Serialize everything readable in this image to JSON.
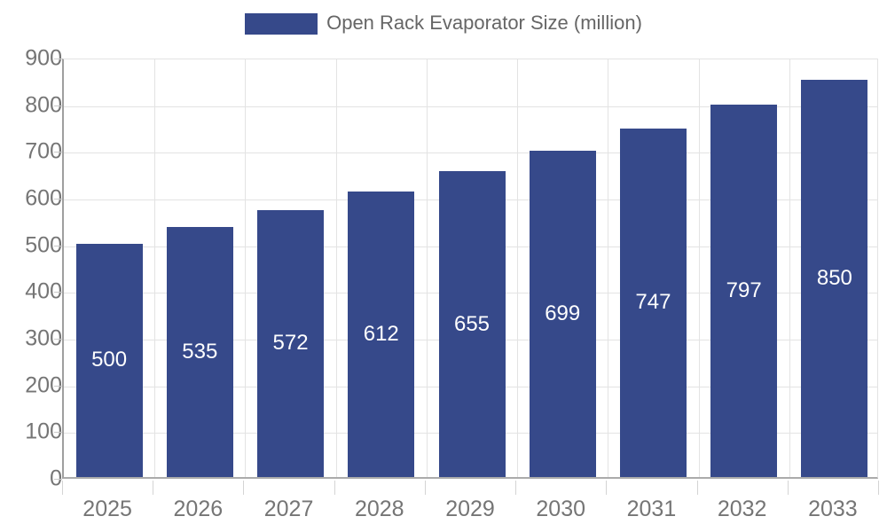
{
  "legend": {
    "label": "Open Rack Evaporator Size (million)"
  },
  "colors": {
    "bar": "#36498a",
    "bar_label_text": "#ffffff",
    "grid": "#e3e3e3",
    "axis_line": "#a5a5a5",
    "tick_text": "#757575",
    "legend_text": "#666666",
    "background": "#ffffff"
  },
  "chart_data": {
    "type": "bar",
    "title": "Open Rack Evaporator Size (million)",
    "categories": [
      "2025",
      "2026",
      "2027",
      "2028",
      "2029",
      "2030",
      "2031",
      "2032",
      "2033"
    ],
    "values": [
      500,
      535,
      572,
      612,
      655,
      699,
      747,
      797,
      850
    ],
    "series": [
      {
        "name": "Open Rack Evaporator Size (million)",
        "values": [
          500,
          535,
          572,
          612,
          655,
          699,
          747,
          797,
          850
        ]
      }
    ],
    "xlabel": "",
    "ylabel": "",
    "ylim": [
      0,
      900
    ],
    "yticks": [
      0,
      100,
      200,
      300,
      400,
      500,
      600,
      700,
      800,
      900
    ],
    "grid": "on",
    "legend_position": "top-center",
    "bar_value_labels": "centered-inside-white"
  }
}
